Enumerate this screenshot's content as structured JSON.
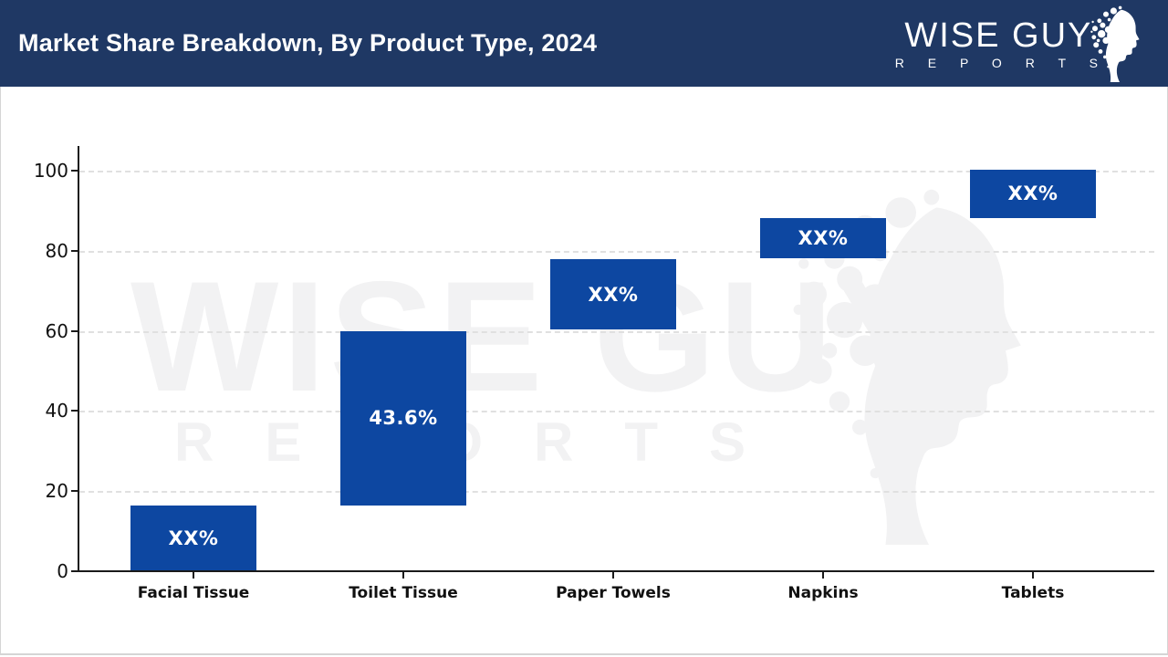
{
  "header": {
    "title": "Market Share Breakdown, By Product Type, 2024",
    "bg_color": "#1f3864",
    "logo": {
      "brand_line1": "WISE GUY",
      "brand_line2": "R E P O R T S",
      "face_icon": "dotted-head-profile-icon"
    }
  },
  "watermark": {
    "line1": "WISE GUY",
    "line2": "REPORTS",
    "color": "#f2f2f3"
  },
  "chart_data": {
    "type": "bar",
    "subtype": "waterfall",
    "title": "Market Share Breakdown, By Product Type, 2024",
    "categories": [
      "Facial Tissue",
      "Toilet Tissue",
      "Paper Towels",
      "Napkins",
      "Tablets"
    ],
    "segments": [
      {
        "category": "Facial Tissue",
        "start": 0,
        "end": 16.4,
        "label": "XX%"
      },
      {
        "category": "Toilet Tissue",
        "start": 16.4,
        "end": 60.0,
        "label": "43.6%"
      },
      {
        "category": "Paper Towels",
        "start": 60.3,
        "end": 77.9,
        "label": "XX%"
      },
      {
        "category": "Napkins",
        "start": 78.1,
        "end": 88.2,
        "label": "XX%"
      },
      {
        "category": "Tablets",
        "start": 88.2,
        "end": 100.2,
        "label": "XX%"
      }
    ],
    "yticks": [
      0,
      20,
      40,
      60,
      80,
      100
    ],
    "ylim": [
      0,
      105
    ],
    "xlabel": "",
    "ylabel": "",
    "grid": "horizontal-dashed",
    "legend": "none",
    "bar_color": "#0d47a1",
    "bar_label_color": "#ffffff",
    "axis_color": "#1a1a1a"
  }
}
